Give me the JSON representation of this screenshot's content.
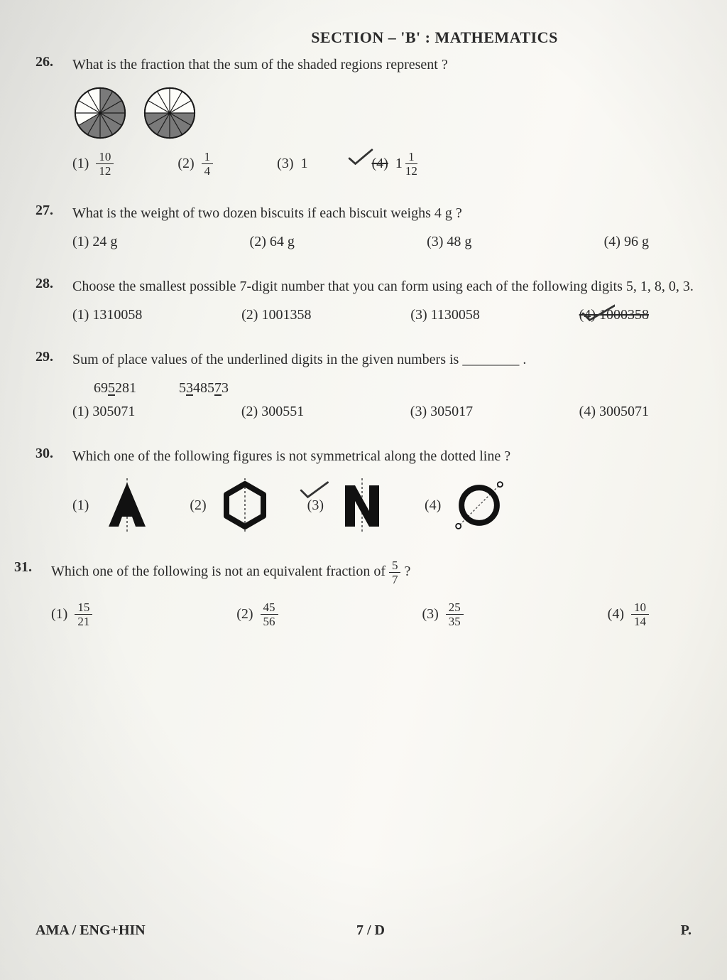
{
  "colors": {
    "text": "#2a2a2a",
    "paper_bg": "#f7f6f0",
    "stroke": "#1a1a1a",
    "shade": "#7a7a7a"
  },
  "section_title": "SECTION – 'B' : MATHEMATICS",
  "q26": {
    "num": "26.",
    "text": "What is the fraction that the sum of the shaded regions represent ?",
    "pies": {
      "slices": 12,
      "radius": 36,
      "stroke_width": 2,
      "shaded_a": [
        0,
        1,
        2,
        3,
        4,
        5,
        6,
        7
      ],
      "shaded_b": [
        3,
        4,
        5,
        6,
        7,
        8
      ]
    },
    "opts": {
      "o1": "(1)",
      "o1_num": "10",
      "o1_den": "12",
      "o2": "(2)",
      "o2_num": "1",
      "o2_den": "4",
      "o3": "(3)",
      "o3_val": "1",
      "o4": "(4)",
      "o4_whole": "1",
      "o4_num": "1",
      "o4_den": "12"
    },
    "checked": 4
  },
  "q27": {
    "num": "27.",
    "text": "What is the weight of two dozen biscuits if each biscuit weighs 4 g ?",
    "opts": {
      "o1": "(1)  24 g",
      "o2": "(2)  64 g",
      "o3": "(3)  48 g",
      "o4": "(4)  96 g"
    }
  },
  "q28": {
    "num": "28.",
    "text": "Choose the smallest possible 7-digit number that you can form using each of the following digits 5, 1, 8, 0, 3.",
    "opts": {
      "o1": "(1)  1310058",
      "o2": "(2)  1001358",
      "o3": "(3)  1130058",
      "o4": "(4)  1000358"
    },
    "checked": 4
  },
  "q29": {
    "num": "29.",
    "text_a": "Sum of place values of the underlined digits in the given numbers is ",
    "blank": "________",
    "period": ".",
    "n1_pre": "69",
    "n1_u": "5",
    "n1_post": "281",
    "n2_pre": "5",
    "n2_u1": "3",
    "n2_mid": "485",
    "n2_u2": "7",
    "n2_post": "3",
    "opts": {
      "o1": "(1)  305071",
      "o2": "(2)  300551",
      "o3": "(3)  305017",
      "o4": "(4)  3005071"
    }
  },
  "q30": {
    "num": "30.",
    "text": "Which one of the following figures is not symmetrical along the dotted line ?",
    "labels": {
      "o1": "(1)",
      "o2": "(2)",
      "o3": "(3)",
      "o4": "(4)"
    },
    "checked": 3
  },
  "q31": {
    "num": "31.",
    "text_a": "Which one of the following is not an equivalent fraction of ",
    "main_num": "5",
    "main_den": "7",
    "qmark": " ?",
    "opts": {
      "o1": "(1)",
      "o1n": "15",
      "o1d": "21",
      "o2": "(2)",
      "o2n": "45",
      "o2d": "56",
      "o3": "(3)",
      "o3n": "25",
      "o3d": "35",
      "o4": "(4)",
      "o4n": "10",
      "o4d": "14"
    }
  },
  "footer": {
    "left": "AMA / ENG+HIN",
    "mid": "7 / D",
    "right": "P."
  }
}
